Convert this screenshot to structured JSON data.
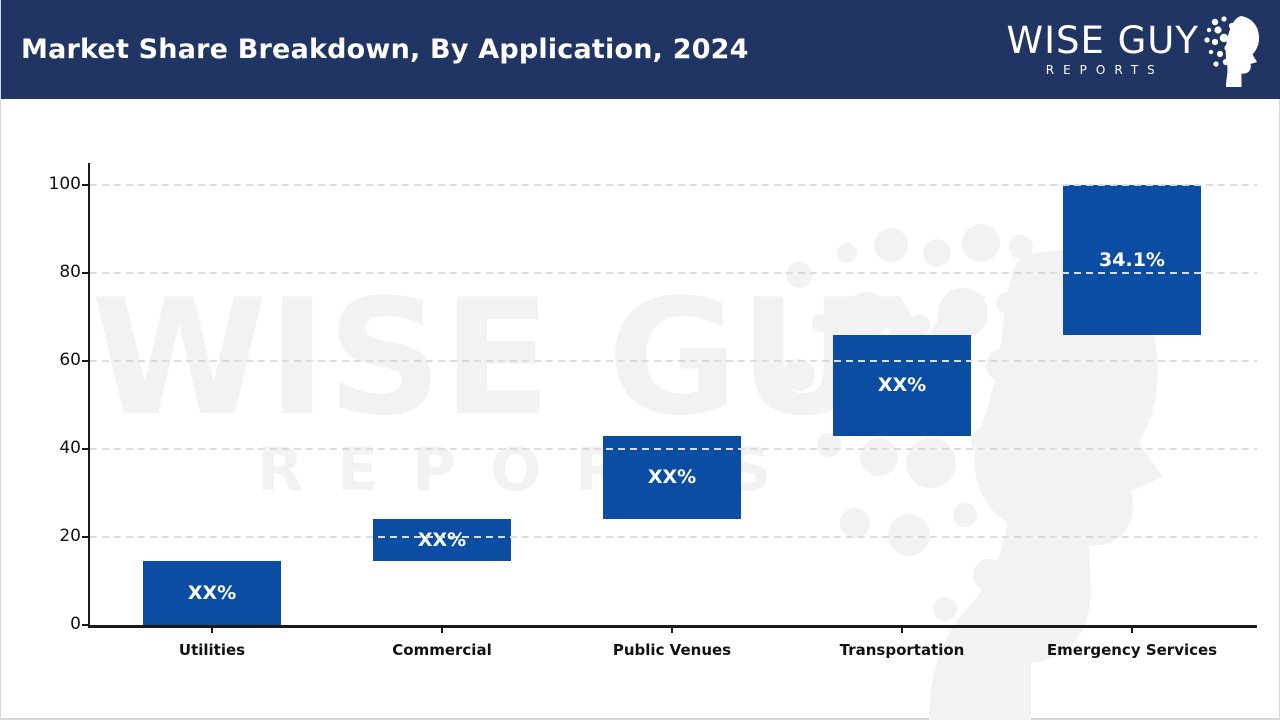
{
  "header": {
    "title": "Market Share Breakdown, By Application, 2024",
    "logo": {
      "line1": "WISE GUY",
      "line2": "REPORTS"
    }
  },
  "watermark": {
    "line1": "WISE GUY",
    "line2": "REPORTS"
  },
  "colors": {
    "header_bg": "#213564",
    "bar_blue": "#0b4da2",
    "gridline": "#dcdcdc",
    "axis": "#1a1a1a",
    "watermark": "#f2f2f2"
  },
  "chart_data": {
    "type": "bar",
    "subtype": "floating-waterfall",
    "title": "Market Share Breakdown, By Application, 2024",
    "categories": [
      "Utilities",
      "Commercial",
      "Public Venues",
      "Transportation",
      "Emergency Services"
    ],
    "series": [
      {
        "name": "Market Share (%)",
        "values": [
          14.5,
          9.6,
          18.9,
          22.9,
          34.1
        ]
      }
    ],
    "segments": [
      {
        "category": "Utilities",
        "start": 0,
        "end": 14.5,
        "label": "XX%"
      },
      {
        "category": "Commercial",
        "start": 14.5,
        "end": 24.1,
        "label": "XX%"
      },
      {
        "category": "Public Venues",
        "start": 24.1,
        "end": 43.0,
        "label": "XX%"
      },
      {
        "category": "Transportation",
        "start": 43.0,
        "end": 65.9,
        "label": "XX%"
      },
      {
        "category": "Emergency Services",
        "start": 65.9,
        "end": 100.0,
        "label": "34.1%"
      }
    ],
    "bar_labels": [
      "XX%",
      "XX%",
      "XX%",
      "XX%",
      "34.1%"
    ],
    "xlabel": "",
    "ylabel": "",
    "ylim": [
      0,
      100
    ],
    "yticks": [
      0,
      20,
      40,
      60,
      80,
      100
    ],
    "grid": "horizontal-dashed",
    "legend": "none",
    "bar_color": "#0b4da2"
  }
}
